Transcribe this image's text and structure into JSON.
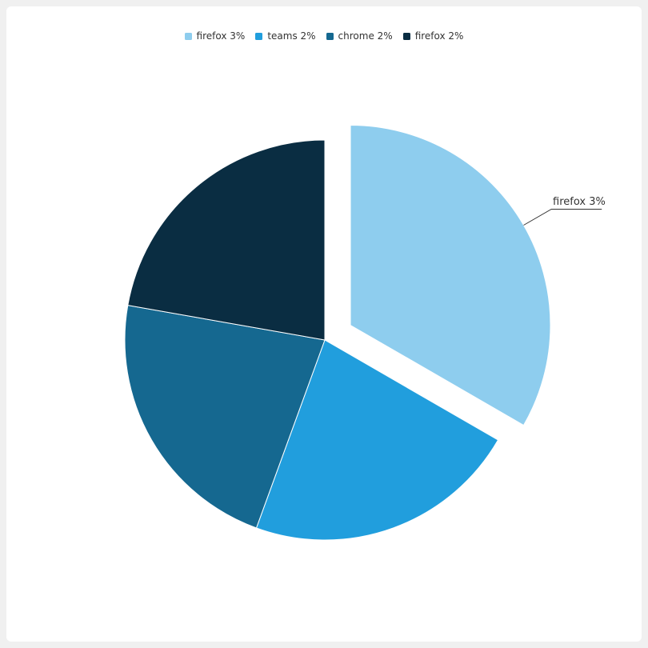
{
  "page": {
    "background_color": "#f0f0f0",
    "card_color": "#ffffff"
  },
  "chart_data": {
    "type": "pie",
    "title": "",
    "legend_position": "top",
    "start_angle": "12 o'clock",
    "direction": "clockwise",
    "total": 9,
    "slices": [
      {
        "name": "firefox",
        "display": "firefox 3%",
        "value": 3,
        "color": "#8ecdee",
        "exploded": true
      },
      {
        "name": "teams",
        "display": "teams 2%",
        "value": 2,
        "color": "#219edd",
        "exploded": false
      },
      {
        "name": "chrome",
        "display": "chrome 2%",
        "value": 2,
        "color": "#156890",
        "exploded": false
      },
      {
        "name": "firefox",
        "display": "firefox 2%",
        "value": 2,
        "color": "#0a2d42",
        "exploded": false
      }
    ],
    "callout_label": "firefox 3%",
    "slice_border_color": "#ffffff",
    "callout_line_color": "#333333",
    "legend_text_color": "#333333"
  }
}
